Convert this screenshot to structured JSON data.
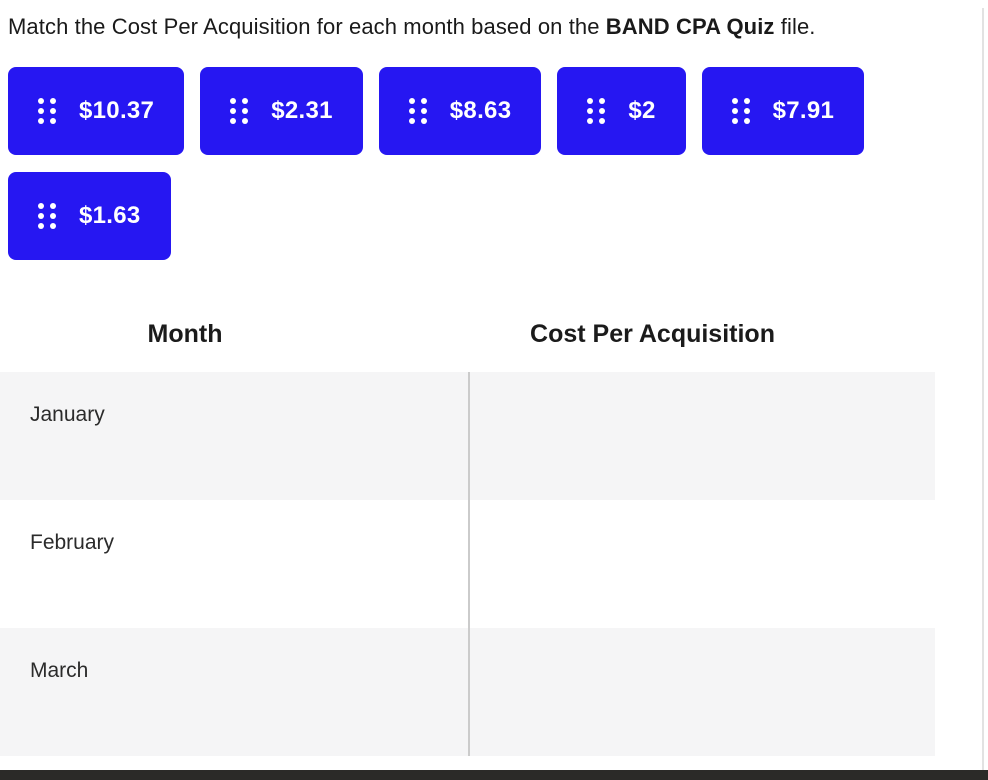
{
  "title": {
    "part1": "Match the Cost Per Acquisition for each month based on the ",
    "bold": "BAND CPA Quiz",
    "part2": " file."
  },
  "chips": [
    "$10.37",
    "$2.31",
    "$8.63",
    "$2",
    "$7.91",
    "$1.63"
  ],
  "table": {
    "headers": {
      "month": "Month",
      "cpa": "Cost Per Acquisition"
    },
    "rows": [
      {
        "month": "January",
        "value": ""
      },
      {
        "month": "February",
        "value": ""
      },
      {
        "month": "March",
        "value": ""
      }
    ]
  },
  "colors": {
    "chip_blue": "#2617f2",
    "row_gray": "#f5f5f6",
    "divider": "#cbcbcb",
    "bottom_bar": "#2b2a28",
    "right_border": "#e2e2e2"
  }
}
